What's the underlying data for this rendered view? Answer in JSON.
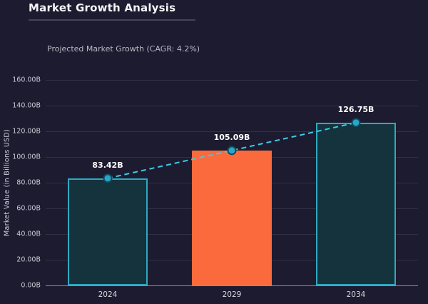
{
  "page": {
    "title": "Market Growth Analysis",
    "subtitle": "Projected Market Growth (CAGR: 4.2%)"
  },
  "chart_data": {
    "type": "bar",
    "title": "Projected Market Growth (CAGR: 4.2%)",
    "categories": [
      "2024",
      "2029",
      "2034"
    ],
    "values": [
      83.42,
      105.09,
      126.75
    ],
    "data_labels": [
      "83.42B",
      "105.09B",
      "126.75B"
    ],
    "xlabel": "",
    "ylabel": "Market Value (in Billions USD)",
    "ylim": [
      0,
      160
    ],
    "ytick_step": 20,
    "ytick_labels": [
      "0.00B",
      "20.00B",
      "40.00B",
      "60.00B",
      "80.00B",
      "100.00B",
      "120.00B",
      "140.00B",
      "160.00B"
    ],
    "grid": true,
    "legend": "none",
    "trend_line": true,
    "colors": {
      "background": "#1d1b2f",
      "bar_fills": [
        "#14333d",
        "#fb6a3c",
        "#14333d"
      ],
      "bar_borders": [
        "#2fa8bf",
        "#fb6a3c",
        "#2fa8bf"
      ],
      "trend_line": "#3ecbe7",
      "marker_fill": "#29a7c4",
      "marker_stroke": "#0e4a5e",
      "title_text": "#f4f4f7",
      "subtitle_text": "#b9b9c4"
    }
  }
}
